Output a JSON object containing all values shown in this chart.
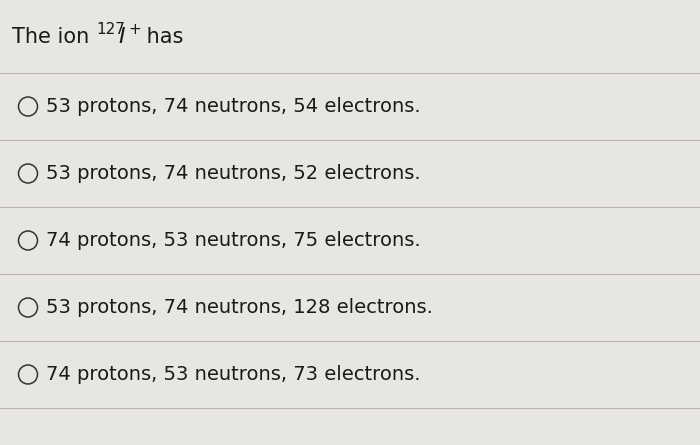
{
  "title_prefix": "The ion ",
  "title_mass": "127",
  "title_element": "I",
  "title_charge": "+",
  "title_suffix": " has",
  "options": [
    "53 protons, 74 neutrons, 54 electrons.",
    "53 protons, 74 neutrons, 52 electrons.",
    "74 protons, 53 neutrons, 75 electrons.",
    "53 protons, 74 neutrons, 128 electrons.",
    "74 protons, 53 neutrons, 73 electrons."
  ],
  "bg_color": "#e8e6e3",
  "text_color": "#1a1a1a",
  "line_color": "#b8b5b0",
  "circle_color": "#333333",
  "title_fontsize": 15,
  "option_fontsize": 14,
  "fig_width": 7.0,
  "fig_height": 4.45
}
